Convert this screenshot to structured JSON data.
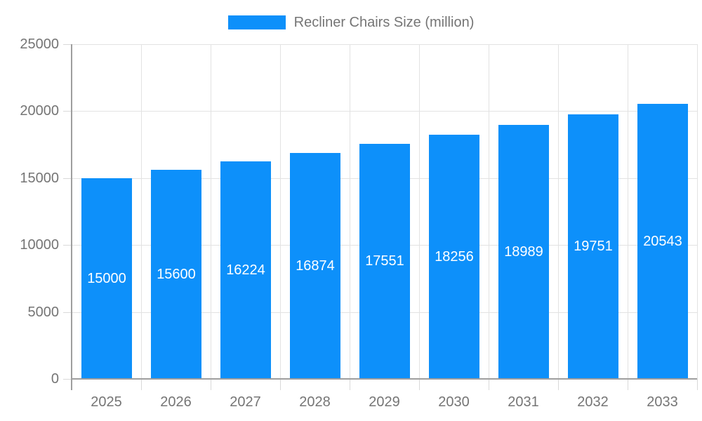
{
  "legend": {
    "label": "Recliner Chairs Size (million)"
  },
  "chart_data": {
    "type": "bar",
    "title": "Recliner Chairs Size (million)",
    "categories": [
      "2025",
      "2026",
      "2027",
      "2028",
      "2029",
      "2030",
      "2031",
      "2032",
      "2033"
    ],
    "values": [
      15000,
      15600,
      16224,
      16874,
      17551,
      18256,
      18989,
      19751,
      20543
    ],
    "xlabel": "",
    "ylabel": "",
    "ylim": [
      0,
      25000
    ],
    "y_ticks": [
      0,
      5000,
      10000,
      15000,
      20000,
      25000
    ],
    "grid": "on",
    "legend_position": "top-center",
    "bar_color": "#0d90fa",
    "bar_label_color": "#ffffff",
    "axis_text_color": "#757575",
    "grid_color": "#e2e2e2",
    "tick_color": "#d9d9d9",
    "axis_line_color": "#9e9e9e"
  }
}
